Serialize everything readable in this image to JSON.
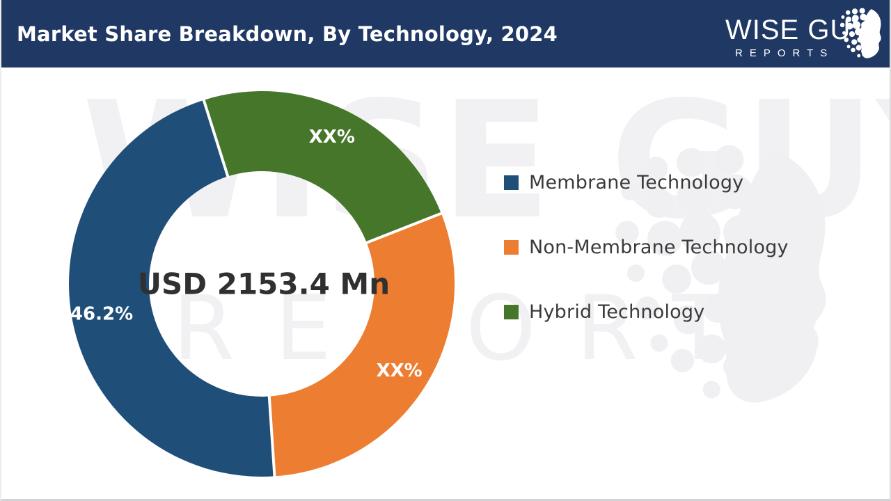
{
  "header": {
    "title": "Market Share Breakdown, By Technology, 2024",
    "logo": {
      "line1": "WISE GUY",
      "line2": "REPORTS",
      "icon": "dotted-face-profile"
    }
  },
  "watermark": {
    "line1": "WISE GUY",
    "line2": "REPORTS",
    "icon": "dotted-face-profile"
  },
  "colors": {
    "header_bg": "#1f3864",
    "membrane_blue": "#1f4e79",
    "non_membrane_orange": "#ed7d31",
    "hybrid_green": "#45762a",
    "segment_divider": "#ffffff",
    "center_text": "#303030",
    "legend_text": "#3a3a3a",
    "watermark_gray": "#f1f1f4"
  },
  "chart_data": {
    "type": "pie",
    "subtype": "donut",
    "title": "Market Share Breakdown, By Technology, 2024",
    "center_label": "USD 2153.4 Mn",
    "start_angle_deg": -107.5,
    "direction": "clockwise",
    "legend_position": "right",
    "segments": [
      {
        "name": "Hybrid Technology",
        "display_label": "XX%",
        "value_pct": 23.9,
        "color": "#45762a"
      },
      {
        "name": "Non-Membrane Technology",
        "display_label": "XX%",
        "value_pct": 29.9,
        "color": "#ed7d31"
      },
      {
        "name": "Membrane Technology",
        "display_label": "46.2%",
        "value_pct": 46.2,
        "color": "#1f4e79"
      }
    ]
  },
  "legend": {
    "items": [
      {
        "label": "Membrane Technology",
        "color": "#1f4e79"
      },
      {
        "label": "Non-Membrane Technology",
        "color": "#ed7d31"
      },
      {
        "label": "Hybrid Technology",
        "color": "#45762a"
      }
    ]
  }
}
